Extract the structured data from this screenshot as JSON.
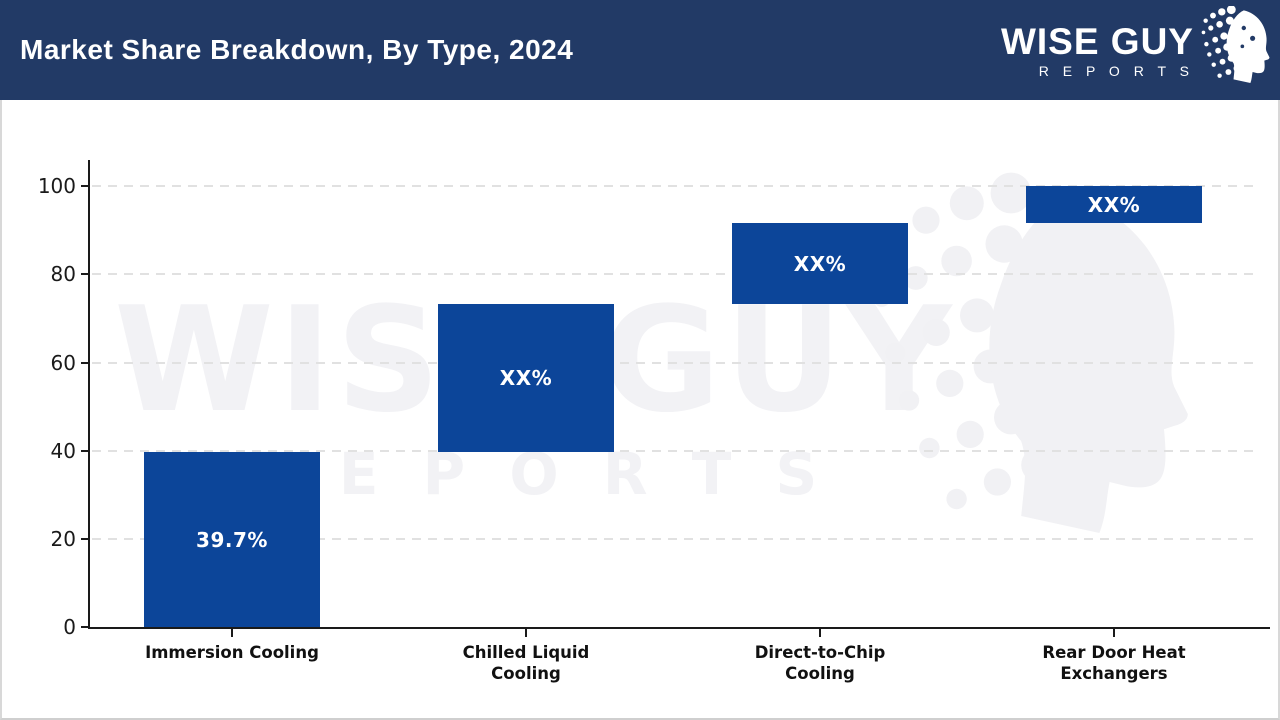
{
  "header": {
    "title": "Market Share Breakdown, By Type, 2024",
    "logo": {
      "wordmark": "WISE GUY",
      "subtext": "R E P O R T S"
    }
  },
  "watermark": {
    "line1": "WISE GUY",
    "line2": "R E P O R T S"
  },
  "colors": {
    "header_bg": "#223a66",
    "bar": "#0c4599",
    "bar_label": "#ffffff",
    "gridline": "#e1e1e1",
    "axis": "#1a1a1a",
    "watermark": "#f2f2f5"
  },
  "chart_data": {
    "type": "bar",
    "subtype": "waterfall-stacked-to-100",
    "title": "Market Share Breakdown, By Type, 2024",
    "categories": [
      "Immersion Cooling",
      "Chilled Liquid Cooling",
      "Direct-to-Chip Cooling",
      "Rear Door Heat Exchangers"
    ],
    "category_lines": [
      [
        "Immersion Cooling"
      ],
      [
        "Chilled Liquid",
        "Cooling"
      ],
      [
        "Direct-to-Chip",
        "Cooling"
      ],
      [
        "Rear Door Heat",
        "Exchangers"
      ]
    ],
    "bar_labels": [
      "39.7%",
      "XX%",
      "XX%",
      "XX%"
    ],
    "segments": [
      {
        "category": "Immersion Cooling",
        "label": "39.7%",
        "start": 0,
        "end": 39.7,
        "value": 39.7
      },
      {
        "category": "Chilled Liquid Cooling",
        "label": "XX%",
        "start": 39.7,
        "end": 73.2,
        "value_est": 33.5
      },
      {
        "category": "Direct-to-Chip Cooling",
        "label": "XX%",
        "start": 73.2,
        "end": 91.7,
        "value_est": 18.5
      },
      {
        "category": "Rear Door Heat Exchangers",
        "label": "XX%",
        "start": 91.7,
        "end": 100.0,
        "value_est": 8.3
      }
    ],
    "ylim": [
      0,
      100
    ],
    "yticks": [
      0,
      20,
      40,
      60,
      80,
      100
    ],
    "xlabel": "",
    "ylabel": "",
    "grid": "horizontal-dashed",
    "legend": "none"
  }
}
